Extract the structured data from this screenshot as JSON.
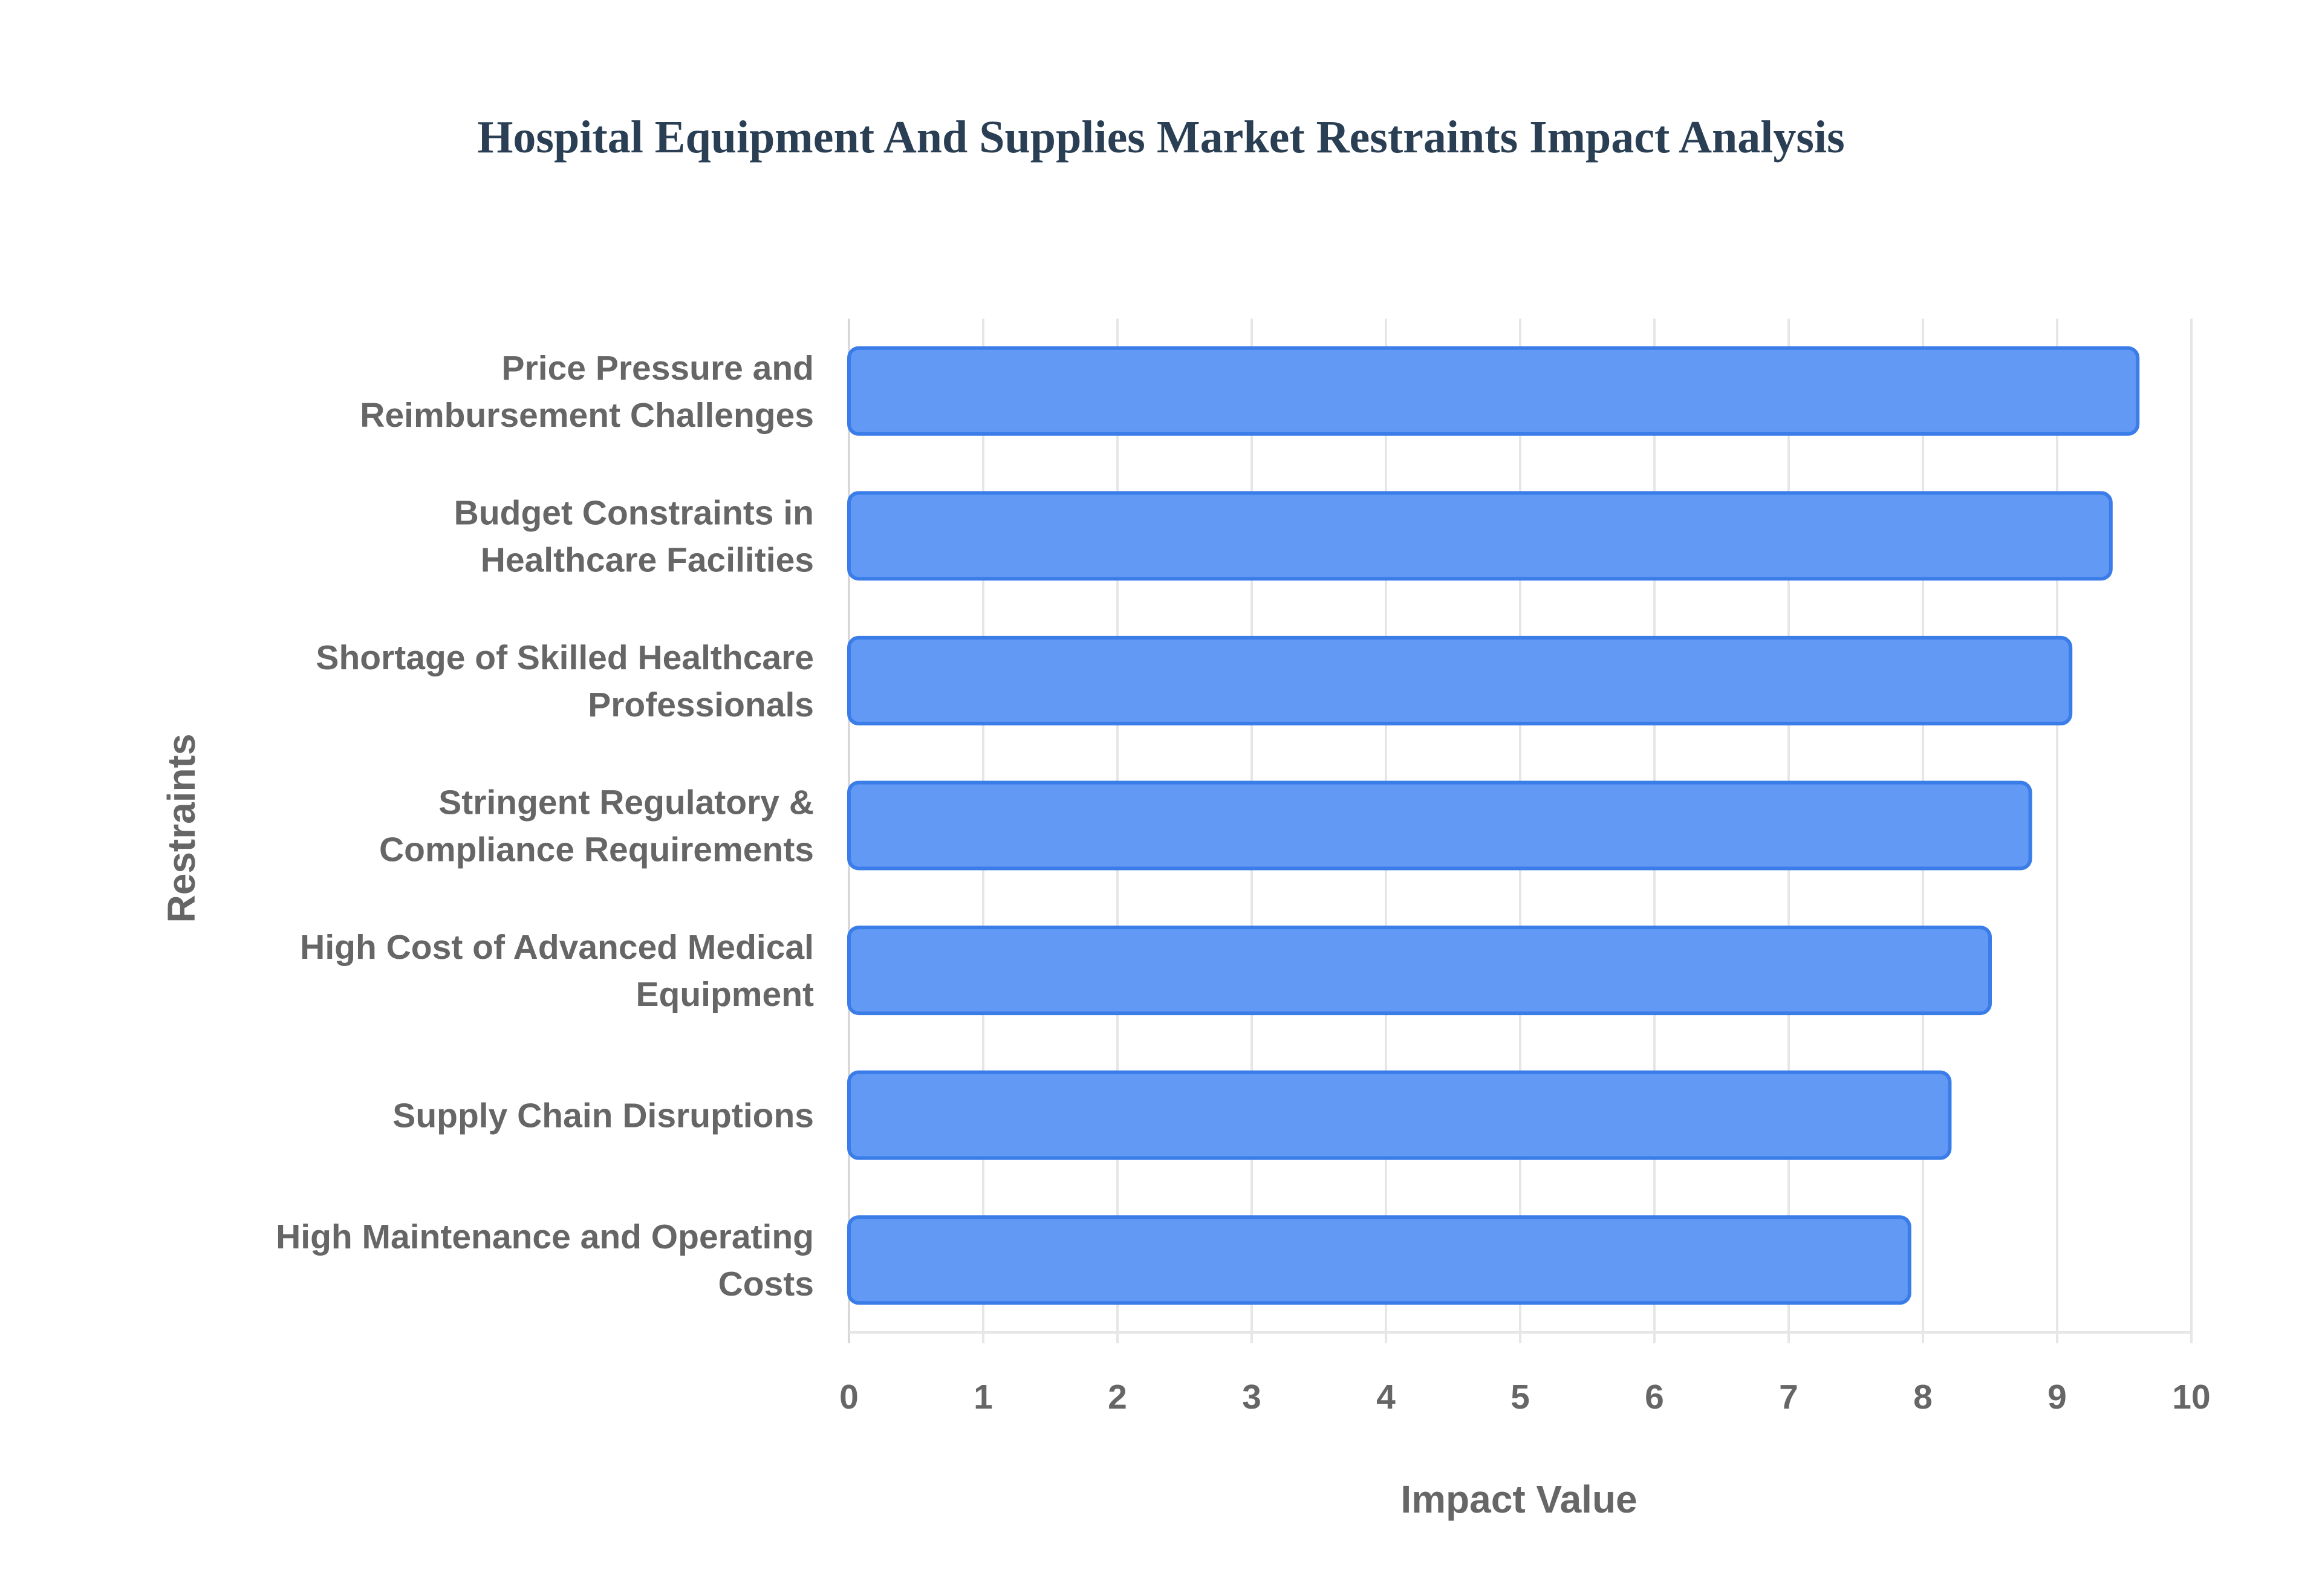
{
  "chart_data": {
    "type": "bar",
    "orientation": "horizontal",
    "title": "Hospital Equipment And Supplies Market Restraints Impact Analysis",
    "xlabel": "Impact Value",
    "ylabel": "Restraints",
    "xlim": [
      0,
      10
    ],
    "xticks": [
      "0",
      "1",
      "2",
      "3",
      "4",
      "5",
      "6",
      "7",
      "8",
      "9",
      "10"
    ],
    "grid": true,
    "bar_color": "#6199f5",
    "bar_border_color": "#3b7de8",
    "categories": [
      [
        "Price Pressure and",
        "Reimbursement Challenges"
      ],
      [
        "Budget Constraints in",
        "Healthcare Facilities"
      ],
      [
        "Shortage of Skilled Healthcare",
        "Professionals"
      ],
      [
        "Stringent Regulatory &",
        "Compliance Requirements"
      ],
      [
        "High Cost of Advanced Medical",
        "Equipment"
      ],
      [
        "Supply Chain Disruptions"
      ],
      [
        "High Maintenance and Operating",
        "Costs"
      ]
    ],
    "values": [
      9.6,
      9.4,
      9.1,
      8.8,
      8.5,
      8.2,
      7.9
    ]
  }
}
